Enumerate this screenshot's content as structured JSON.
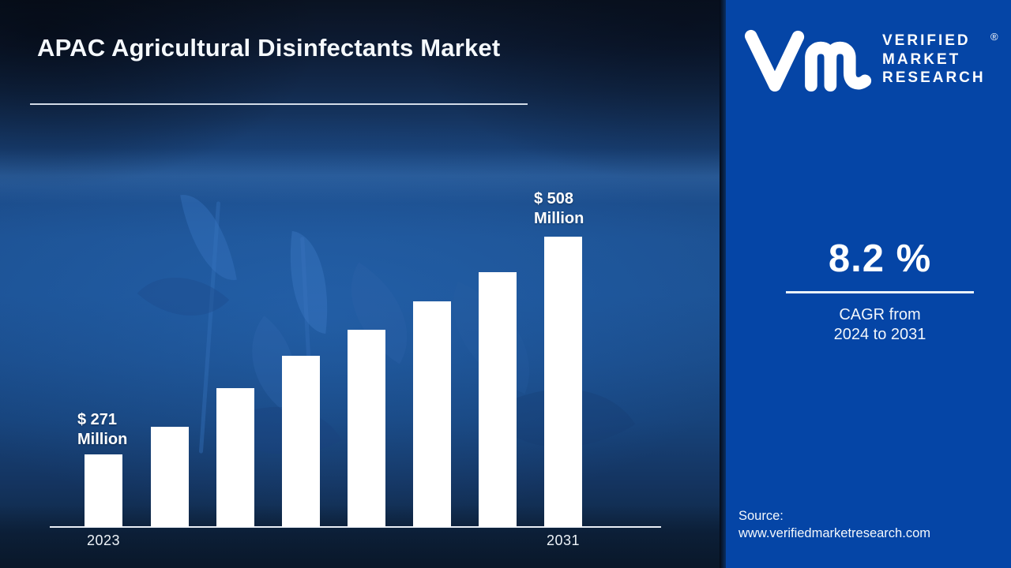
{
  "header": {
    "title": "APAC Agricultural Disinfectants Market"
  },
  "logo": {
    "mark": "vmr-monogram",
    "lines": [
      "VERIFIED",
      "MARKET",
      "RESEARCH"
    ],
    "registered": "®"
  },
  "stats": {
    "value": "8.2 %",
    "caption_line1": "CAGR from",
    "caption_line2": "2024 to 2031"
  },
  "source": {
    "label": "Source:",
    "url": "www.verifiedmarketresearch.com"
  },
  "colors": {
    "panel_blue": "#0545a6",
    "bar_white": "#ffffff",
    "axis_white": "#e9eef6",
    "background_navy": "#122a4d"
  },
  "chart_data": {
    "type": "bar",
    "title": "APAC Agricultural Disinfectants Market",
    "xlabel": "",
    "ylabel": "",
    "unit": "USD Million",
    "x_tick_labels": [
      "2023",
      "",
      "",
      "",
      "",
      "",
      "",
      "2031"
    ],
    "values": [
      271,
      301,
      343,
      378,
      407,
      438,
      469,
      508
    ],
    "labeled_points": {
      "2023": 271,
      "2031": 508
    },
    "first_label_line1": "$ 271",
    "first_label_line2": "Million",
    "last_label_line1": "$ 508",
    "last_label_line2": "Million",
    "note": "Only first and last bars carry data labels; intermediate values estimated from bar heights",
    "ylim": [
      192,
      520
    ],
    "grid": false,
    "legend": false,
    "bar_color": "#ffffff",
    "axis_color": "#e9eef6"
  }
}
